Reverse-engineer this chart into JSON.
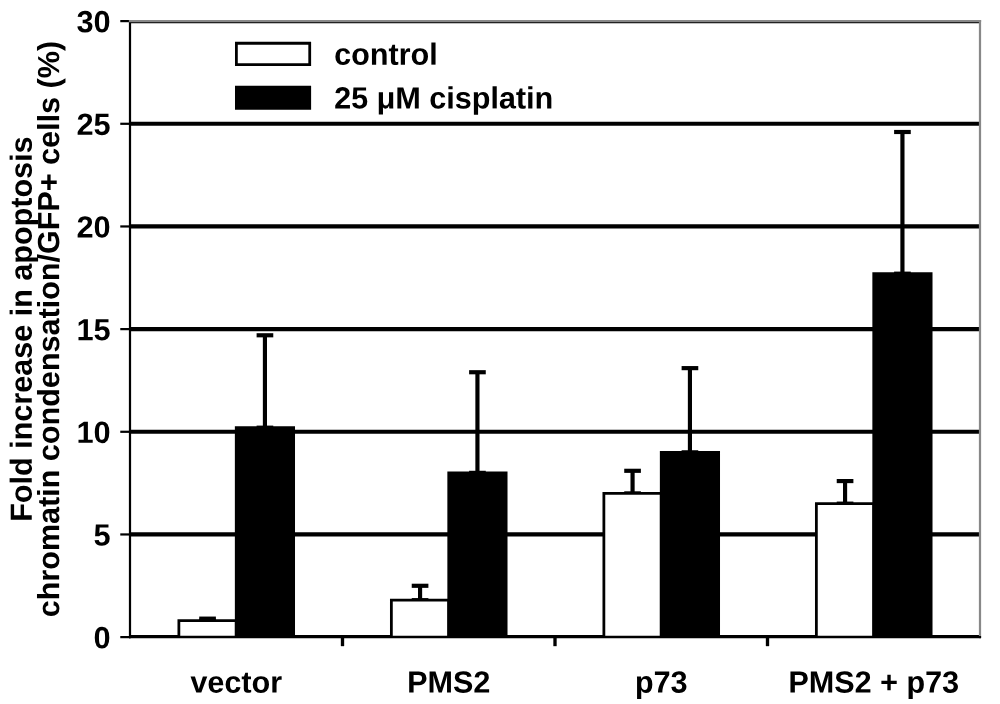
{
  "chart_data": {
    "type": "bar",
    "ylabel": "Fold increase in apoptosis\nchromatin condensation/GFP+ cells (%)",
    "categories": [
      "vector",
      "PMS2",
      "p73",
      "PMS2 + p73"
    ],
    "series": [
      {
        "name": "control",
        "color": "#ffffff",
        "values": [
          0.8,
          1.8,
          7.0,
          6.5
        ],
        "errors": [
          [
            0.8,
            0.9
          ],
          [
            1.8,
            2.5
          ],
          [
            7.0,
            8.1
          ],
          [
            6.5,
            7.6
          ]
        ]
      },
      {
        "name": "25 μM cisplatin",
        "color": "#000000",
        "values": [
          10.2,
          8.0,
          9.0,
          17.7
        ],
        "errors": [
          [
            10.2,
            14.7
          ],
          [
            8.0,
            12.9
          ],
          [
            9.0,
            13.1
          ],
          [
            17.7,
            24.6
          ]
        ]
      }
    ],
    "ylim": [
      0,
      30
    ],
    "yticks": [
      0,
      5,
      10,
      15,
      20,
      25,
      30
    ],
    "grid": "y",
    "legend": "top left"
  }
}
